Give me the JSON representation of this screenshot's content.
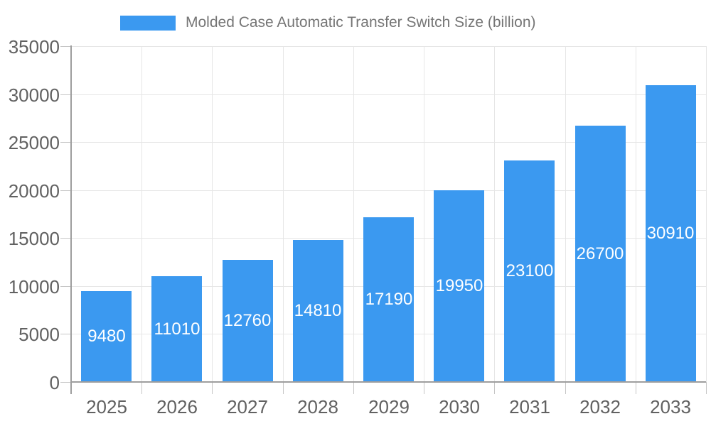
{
  "legend": {
    "label": "Molded Case Automatic Transfer Switch Size (billion)"
  },
  "colors": {
    "bar": "#3b99f0",
    "grid": "#e6e6e6",
    "axis": "#9e9e9e",
    "tick": "#c6c6c6",
    "axis_label_text": "#616161",
    "legend_text": "#757575",
    "value_label_text": "#ffffff",
    "background": "#ffffff"
  },
  "chart_data": {
    "type": "bar",
    "title": "Molded Case Automatic Transfer Switch Size (billion)",
    "categories": [
      "2025",
      "2026",
      "2027",
      "2028",
      "2029",
      "2030",
      "2031",
      "2032",
      "2033"
    ],
    "values": [
      9480,
      11010,
      12760,
      14810,
      17190,
      19950,
      23100,
      26700,
      30910
    ],
    "xlabel": "",
    "ylabel": "",
    "ylim": [
      0,
      35000
    ],
    "ytick_step": 5000,
    "ytick_labels": [
      "0",
      "5000",
      "10000",
      "15000",
      "20000",
      "25000",
      "30000",
      "35000"
    ],
    "grid": true,
    "legend_position": "top",
    "value_labels": "inside-center"
  }
}
